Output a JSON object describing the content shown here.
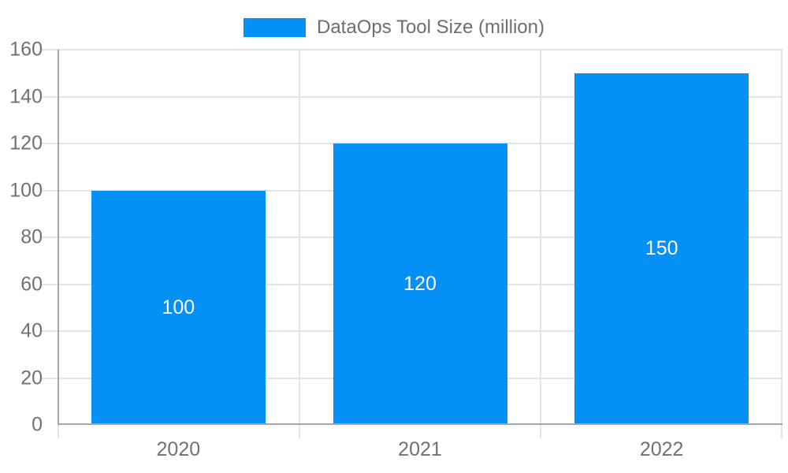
{
  "legend": {
    "label": "DataOps Tool Size (million)"
  },
  "chart_data": {
    "type": "bar",
    "title": "DataOps Tool Size (million)",
    "categories": [
      "2020",
      "2021",
      "2022"
    ],
    "values": [
      100,
      120,
      150
    ],
    "series": [
      {
        "name": "DataOps Tool Size (million)",
        "values": [
          100,
          120,
          150
        ]
      }
    ],
    "value_labels": [
      "100",
      "120",
      "150"
    ],
    "xlabel": "",
    "ylabel": "",
    "ylim": [
      0,
      160
    ],
    "yticks": [
      0,
      20,
      40,
      60,
      80,
      100,
      120,
      140,
      160
    ],
    "grid": true,
    "legend_position": "top-center",
    "colors": {
      "bar": "#0590f6",
      "value_label": "#ffffff",
      "axis_text": "#717171",
      "legend_text": "#6e6e6e",
      "gridline": "#e4e4e4",
      "separator": "#e4e4e4",
      "axis_line": "#a6a6a6",
      "background": "#ffffff"
    }
  }
}
